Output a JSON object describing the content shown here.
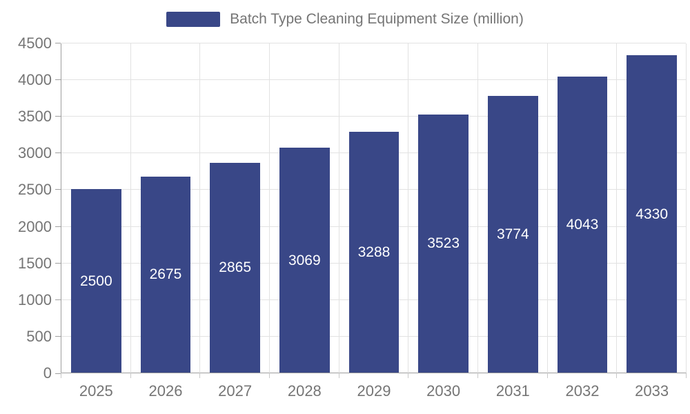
{
  "legend": {
    "label": "Batch Type Cleaning Equipment Size (million)"
  },
  "colors": {
    "bar": "#394787",
    "axis_line": "#9e9e9e",
    "grid_line": "#e2e2e2",
    "x_tick_line": "#c9c9c9",
    "axis_text": "#757575",
    "legend_text": "#757575",
    "bar_label_text": "#ffffff",
    "background": "#ffffff"
  },
  "chart_data": {
    "type": "bar",
    "title": "Batch Type Cleaning Equipment Size (million)",
    "series_name": "Batch Type Cleaning Equipment Size (million)",
    "categories": [
      "2025",
      "2026",
      "2027",
      "2028",
      "2029",
      "2030",
      "2031",
      "2032",
      "2033"
    ],
    "values": [
      2500,
      2675,
      2865,
      3069,
      3288,
      3523,
      3774,
      4043,
      4330
    ],
    "xlabel": "",
    "ylabel": "",
    "ylim": [
      0,
      4500
    ],
    "ytick_step": 500,
    "ytick_labels": [
      "0",
      "500",
      "1000",
      "1500",
      "2000",
      "2500",
      "3000",
      "3500",
      "4000",
      "4500"
    ],
    "grid": true,
    "grid_horizontal": true,
    "grid_vertical": true,
    "legend_position": "top-center",
    "bar_label_position": "inside-center",
    "bar_width_fraction": 0.72
  }
}
